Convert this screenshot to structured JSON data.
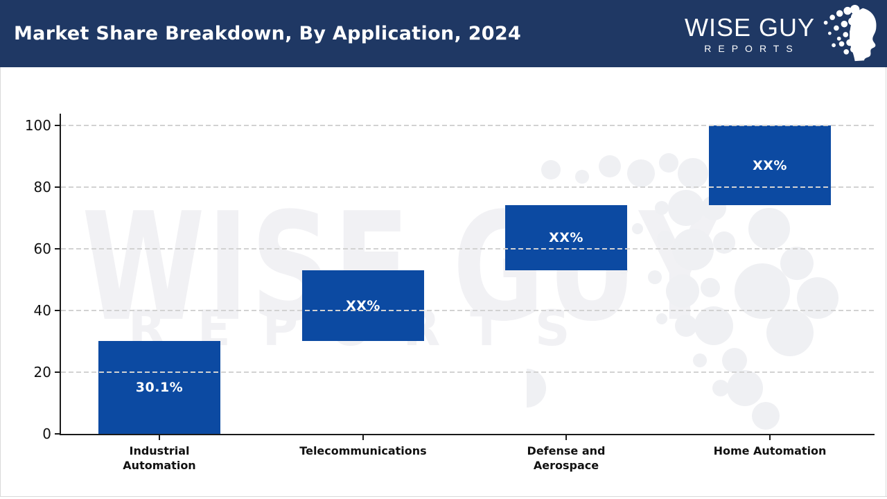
{
  "header": {
    "title": "Market Share Breakdown, By Application, 2024",
    "logo": {
      "line1": "WISE GUY",
      "line2": "REPORTS"
    }
  },
  "watermark": {
    "line1": "WISE GUY",
    "line2": "REPORTS"
  },
  "chart_data": {
    "type": "bar",
    "subtype": "floating-waterfall",
    "title": "Market Share Breakdown, By Application, 2024",
    "xlabel": "",
    "ylabel": "",
    "categories": [
      "Industrial Automation",
      "Telecommunications",
      "Defense and Aerospace",
      "Home Automation"
    ],
    "categories_lines": [
      [
        "Industrial",
        "Automation"
      ],
      [
        "Telecommunications"
      ],
      [
        "Defense and",
        "Aerospace"
      ],
      [
        "Home Automation"
      ]
    ],
    "segments": [
      {
        "start": 0,
        "end": 30.1,
        "label": "30.1%"
      },
      {
        "start": 30.1,
        "end": 53.1,
        "label": "XX%"
      },
      {
        "start": 53.1,
        "end": 74.1,
        "label": "XX%"
      },
      {
        "start": 74.1,
        "end": 100,
        "label": "XX%"
      }
    ],
    "yticks": [
      0,
      20,
      40,
      60,
      80,
      100
    ],
    "ylim": [
      0,
      105
    ],
    "grid": "horizontal-dashed",
    "legend": "none",
    "bar_color": "#0c4aa2",
    "value_label_color": "#ffffff",
    "axis_color": "#1a1a1a",
    "gridline_color": "#d2d2d2",
    "header_background": "#1f3864",
    "watermark_color": "#f1f1f4"
  }
}
